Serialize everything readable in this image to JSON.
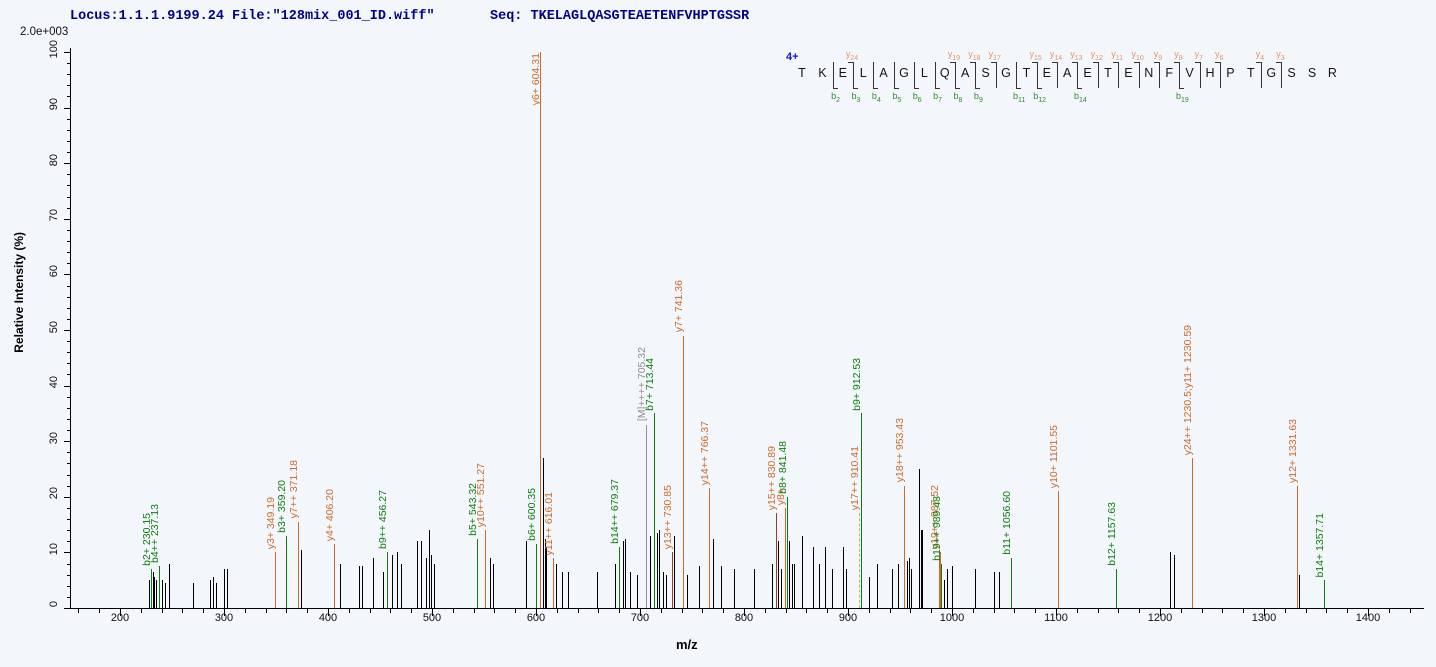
{
  "header": {
    "locus_file": "Locus:1.1.1.9199.24 File:\"128mix_001_ID.wiff\"",
    "seq_text": "Seq: TKELAGLQASGTEAETENFVHPTGSSR"
  },
  "palette": {
    "y": "#cd6a2a",
    "ydark": "#9d3a20",
    "ylight": "#e7a57f",
    "b": "#0e7d0e",
    "M": "#8f8f8f",
    "unassigned": "#000000",
    "header_text": "#00008b",
    "charge_blue": "#1414cc",
    "seq_y_tag": "#e8946a",
    "seq_b_tag": "#2f8f2f",
    "axis": "#000000"
  },
  "peptide": {
    "charge_label": "4+",
    "sequence": "TKELAGLQASGTEAETENFVHPTGSSR",
    "y_ions": [
      {
        "name": "y24",
        "after": 3
      },
      {
        "name": "y19",
        "after": 8
      },
      {
        "name": "y18",
        "after": 9
      },
      {
        "name": "y17",
        "after": 10
      },
      {
        "name": "y15",
        "after": 12
      },
      {
        "name": "y14",
        "after": 13
      },
      {
        "name": "y13",
        "after": 14
      },
      {
        "name": "y12",
        "after": 15
      },
      {
        "name": "y11",
        "after": 16
      },
      {
        "name": "y10",
        "after": 17
      },
      {
        "name": "y9",
        "after": 18
      },
      {
        "name": "y8",
        "after": 19
      },
      {
        "name": "y7",
        "after": 20
      },
      {
        "name": "y6",
        "after": 21
      },
      {
        "name": "y4",
        "after": 23
      },
      {
        "name": "y3",
        "after": 24
      }
    ],
    "b_ions": [
      {
        "name": "b2",
        "after": 2
      },
      {
        "name": "b3",
        "after": 3
      },
      {
        "name": "b4",
        "after": 4
      },
      {
        "name": "b5",
        "after": 5
      },
      {
        "name": "b6",
        "after": 6
      },
      {
        "name": "b7",
        "after": 7
      },
      {
        "name": "b8",
        "after": 8
      },
      {
        "name": "b9",
        "after": 9
      },
      {
        "name": "b11",
        "after": 11
      },
      {
        "name": "b12",
        "after": 12
      },
      {
        "name": "b14",
        "after": 14
      },
      {
        "name": "b19",
        "after": 19
      }
    ]
  },
  "axes": {
    "x_title": "m/z",
    "y_title": "Relative  Intensity (%)",
    "scale_label": "2.0e+003",
    "x_ticks": {
      "label_min": 200,
      "label_max": 1400,
      "major_step": 100,
      "minor_step": 20,
      "minor_min": 160,
      "minor_max": 1440
    },
    "y_ticks": {
      "min": 0,
      "max": 100,
      "major_step": 10,
      "minor_step": 2
    }
  },
  "chart_data": {
    "type": "bar",
    "subtype": "MS/MS centroid peak spectrum",
    "title": "Locus:1.1.1.9199.24 File:\"128mix_001_ID.wiff\" Seq: TKELAGLQASGTEAETENFVHPTGSSR",
    "xlabel": "m/z",
    "ylabel": "Relative  Intensity (%)",
    "xlim": [
      152,
      1452
    ],
    "ylim": [
      0,
      100
    ],
    "grid": false,
    "legend": "none",
    "intensity_scale": "2.0e+003",
    "peaks": [
      {
        "mz": 228,
        "pct": 5
      },
      {
        "mz": 230.15,
        "pct": 7,
        "ion": "b",
        "label": "b2+ 230.15"
      },
      {
        "mz": 231.5,
        "pct": 6.5
      },
      {
        "mz": 233,
        "pct": 5.5
      },
      {
        "mz": 235,
        "pct": 5
      },
      {
        "mz": 237.13,
        "pct": 7.5,
        "ion": "b",
        "label": "b4++ 237.13"
      },
      {
        "mz": 240,
        "pct": 5
      },
      {
        "mz": 243,
        "pct": 4.5
      },
      {
        "mz": 247,
        "pct": 8
      },
      {
        "mz": 270,
        "pct": 4.5
      },
      {
        "mz": 287,
        "pct": 5
      },
      {
        "mz": 289,
        "pct": 5.5
      },
      {
        "mz": 292,
        "pct": 4.5
      },
      {
        "mz": 300,
        "pct": 7
      },
      {
        "mz": 303,
        "pct": 7
      },
      {
        "mz": 349.19,
        "pct": 10,
        "ion": "y",
        "label": "y3+ 349.19"
      },
      {
        "mz": 359.2,
        "pct": 13,
        "ion": "b",
        "label": "b3+ 359.20"
      },
      {
        "mz": 371.18,
        "pct": 15.5,
        "ion": "y",
        "label": "y7++ 371.18"
      },
      {
        "mz": 374.5,
        "pct": 10.5
      },
      {
        "mz": 406.2,
        "pct": 11.5,
        "ion": "y",
        "label": "y4+ 406.20"
      },
      {
        "mz": 412,
        "pct": 8
      },
      {
        "mz": 430,
        "pct": 7.5
      },
      {
        "mz": 433,
        "pct": 7.5
      },
      {
        "mz": 443,
        "pct": 9
      },
      {
        "mz": 453,
        "pct": 6.5
      },
      {
        "mz": 456.27,
        "pct": 10,
        "ion": "b",
        "label": "b9++ 456.27"
      },
      {
        "mz": 462,
        "pct": 9.5
      },
      {
        "mz": 466,
        "pct": 10
      },
      {
        "mz": 470,
        "pct": 8
      },
      {
        "mz": 486,
        "pct": 12
      },
      {
        "mz": 489,
        "pct": 12
      },
      {
        "mz": 494,
        "pct": 9
      },
      {
        "mz": 497,
        "pct": 14
      },
      {
        "mz": 499,
        "pct": 9.5
      },
      {
        "mz": 502,
        "pct": 8
      },
      {
        "mz": 543.32,
        "pct": 12.5,
        "ion": "b",
        "label": "b5+ 543.32"
      },
      {
        "mz": 551.27,
        "pct": 14,
        "ion": "y",
        "label": "y10++ 551.27"
      },
      {
        "mz": 556,
        "pct": 9
      },
      {
        "mz": 559,
        "pct": 8
      },
      {
        "mz": 590,
        "pct": 12
      },
      {
        "mz": 600.35,
        "pct": 11.5,
        "ion": "b",
        "label": "b6+ 600.35"
      },
      {
        "mz": 604.31,
        "pct": 100,
        "ion": "y",
        "label": "y6+ 604.31"
      },
      {
        "mz": 606.5,
        "pct": 27
      },
      {
        "mz": 608.5,
        "pct": 12.5
      },
      {
        "mz": 610,
        "pct": 11
      },
      {
        "mz": 616.01,
        "pct": 9,
        "ion": "y",
        "label": "y11++ 616.01"
      },
      {
        "mz": 619,
        "pct": 8
      },
      {
        "mz": 625,
        "pct": 6.5
      },
      {
        "mz": 631,
        "pct": 6.5
      },
      {
        "mz": 659,
        "pct": 6.5
      },
      {
        "mz": 676,
        "pct": 8
      },
      {
        "mz": 679.37,
        "pct": 11,
        "ion": "b",
        "label": "b14++ 679.37"
      },
      {
        "mz": 684,
        "pct": 12
      },
      {
        "mz": 686,
        "pct": 12.5
      },
      {
        "mz": 690,
        "pct": 6.5
      },
      {
        "mz": 697,
        "pct": 6
      },
      {
        "mz": 705.32,
        "pct": 33,
        "ion": "M",
        "label": "[M]++++ 705.32"
      },
      {
        "mz": 710,
        "pct": 13
      },
      {
        "mz": 713.44,
        "pct": 35,
        "ion": "b",
        "label": "b7+ 713.44"
      },
      {
        "mz": 716,
        "pct": 13.5
      },
      {
        "mz": 718,
        "pct": 14
      },
      {
        "mz": 722,
        "pct": 6.5
      },
      {
        "mz": 725,
        "pct": 6
      },
      {
        "mz": 730.85,
        "pct": 10,
        "ion": "ydark",
        "label": "y13++ 730.85"
      },
      {
        "mz": 733,
        "pct": 13
      },
      {
        "mz": 741.36,
        "pct": 49,
        "ion": "y",
        "label": "y7+ 741.36"
      },
      {
        "mz": 745,
        "pct": 6
      },
      {
        "mz": 757,
        "pct": 7.5
      },
      {
        "mz": 766.37,
        "pct": 21.5,
        "ion": "y",
        "label": "y14++ 766.37"
      },
      {
        "mz": 770,
        "pct": 12.5
      },
      {
        "mz": 778,
        "pct": 7.5
      },
      {
        "mz": 790,
        "pct": 7
      },
      {
        "mz": 810,
        "pct": 7
      },
      {
        "mz": 827,
        "pct": 8
      },
      {
        "mz": 830.89,
        "pct": 17,
        "ion": "ydark",
        "label": "y15++ 830.89"
      },
      {
        "mz": 832.5,
        "pct": 12
      },
      {
        "mz": 836,
        "pct": 7
      },
      {
        "mz": 839.5,
        "pct": 18,
        "ion": "y",
        "label": "y8+"
      },
      {
        "mz": 841.48,
        "pct": 20,
        "ion": "b",
        "label": "b8+ 841.48"
      },
      {
        "mz": 843.5,
        "pct": 12
      },
      {
        "mz": 846,
        "pct": 8
      },
      {
        "mz": 848,
        "pct": 8
      },
      {
        "mz": 856,
        "pct": 13
      },
      {
        "mz": 866,
        "pct": 11
      },
      {
        "mz": 872,
        "pct": 8
      },
      {
        "mz": 878,
        "pct": 11
      },
      {
        "mz": 885,
        "pct": 7
      },
      {
        "mz": 895,
        "pct": 11
      },
      {
        "mz": 898,
        "pct": 7
      },
      {
        "mz": 910.41,
        "pct": 17,
        "ion": "ylight",
        "dashed": true,
        "label": "y17++ 910.41"
      },
      {
        "mz": 912.53,
        "pct": 35,
        "ion": "b",
        "label": "b9+ 912.53"
      },
      {
        "mz": 920,
        "pct": 5.5
      },
      {
        "mz": 928,
        "pct": 8
      },
      {
        "mz": 942,
        "pct": 7
      },
      {
        "mz": 948,
        "pct": 8
      },
      {
        "mz": 953.43,
        "pct": 22,
        "ion": "y",
        "label": "y18++ 953.43"
      },
      {
        "mz": 957,
        "pct": 8.5
      },
      {
        "mz": 959,
        "pct": 9
      },
      {
        "mz": 961,
        "pct": 7
      },
      {
        "mz": 968,
        "pct": 25
      },
      {
        "mz": 970,
        "pct": 14
      },
      {
        "mz": 971.5,
        "pct": 14
      },
      {
        "mz": 987.52,
        "pct": 10,
        "ion": "y",
        "bold": true,
        "label": "y19++ 987.52"
      },
      {
        "mz": 989.48,
        "pct": 8,
        "ion": "b",
        "label": "b19++ 989.48"
      },
      {
        "mz": 992,
        "pct": 5
      },
      {
        "mz": 995,
        "pct": 7
      },
      {
        "mz": 1000,
        "pct": 7.5
      },
      {
        "mz": 1022,
        "pct": 7
      },
      {
        "mz": 1040,
        "pct": 6.5
      },
      {
        "mz": 1045,
        "pct": 6.5
      },
      {
        "mz": 1056.6,
        "pct": 9,
        "ion": "b",
        "label": "b11+ 1056.60"
      },
      {
        "mz": 1101.55,
        "pct": 21,
        "ion": "y",
        "label": "y10+ 1101.55"
      },
      {
        "mz": 1157.63,
        "pct": 7,
        "ion": "b",
        "label": "b12+ 1157.63"
      },
      {
        "mz": 1210,
        "pct": 10
      },
      {
        "mz": 1213,
        "pct": 9.5
      },
      {
        "mz": 1230.59,
        "pct": 27,
        "ion": "y",
        "label": "y24++ 1230.5;y11+ 1230.59"
      },
      {
        "mz": 1331.63,
        "pct": 22,
        "ion": "y",
        "label": "y12+ 1331.63"
      },
      {
        "mz": 1333.5,
        "pct": 6
      },
      {
        "mz": 1357.71,
        "pct": 5,
        "ion": "b",
        "label": "b14+ 1357.71"
      }
    ]
  }
}
